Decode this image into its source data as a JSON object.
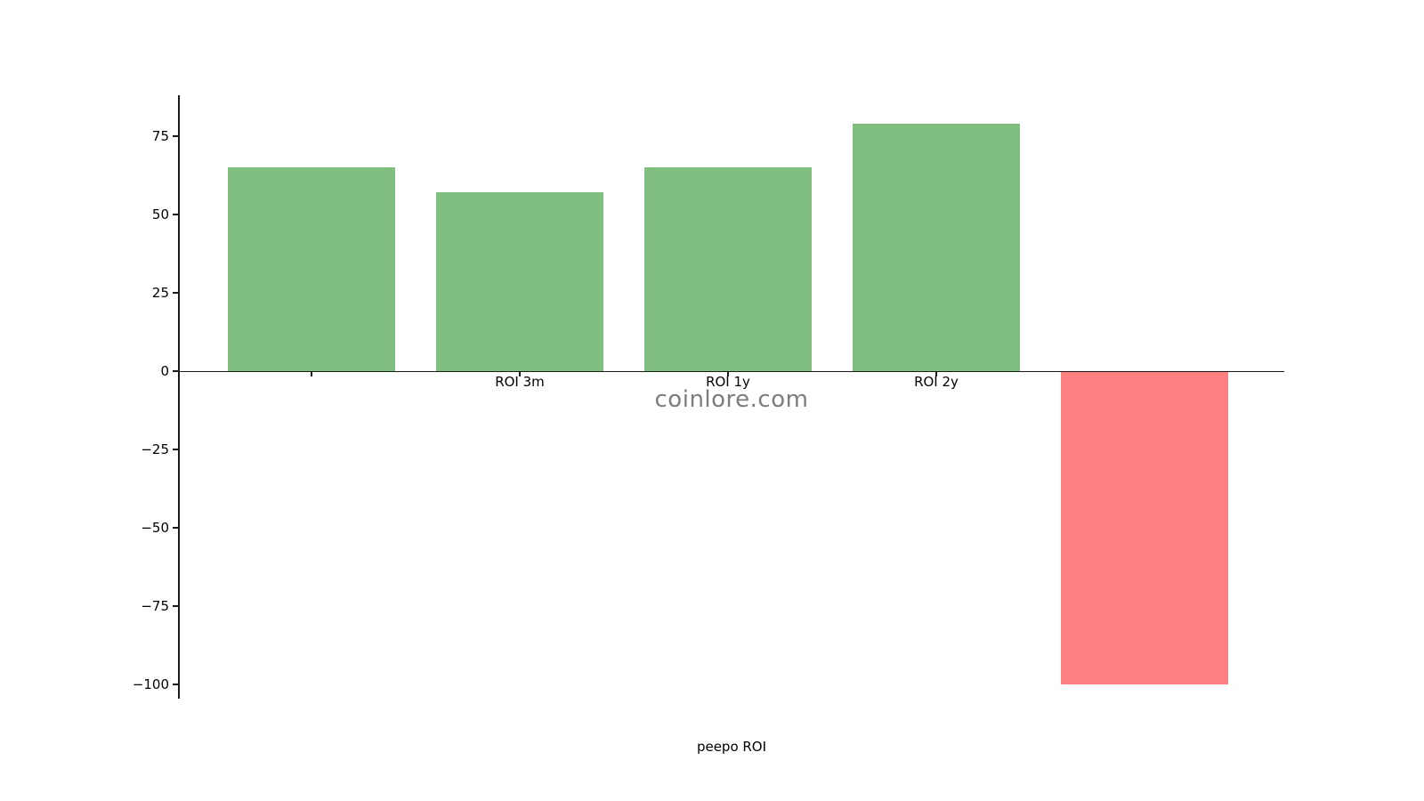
{
  "chart_data": {
    "type": "bar",
    "title": "peepo ROI",
    "watermark": "coinlore.com",
    "categories": [
      "",
      "ROI 3m",
      "ROI 1y",
      "ROI 2y",
      ""
    ],
    "values": [
      65,
      57,
      65,
      79,
      -100
    ],
    "series": [
      {
        "name": "peepo ROI %",
        "values": [
          65,
          57,
          65,
          79,
          -100
        ]
      }
    ],
    "xlabel": "peepo ROI",
    "ylabel": "",
    "y_ticks": [
      75,
      50,
      25,
      0,
      -25,
      -50,
      -75,
      -100
    ],
    "y_tick_labels": [
      "75",
      "50",
      "25",
      "0",
      "−25",
      "−50",
      "−75",
      "−100"
    ],
    "ylim": [
      -104,
      88
    ],
    "grid": false,
    "legend_position": "none",
    "positive_color": "#80bf80",
    "negative_color": "#ff8080",
    "axis_color": "#1a1a1a",
    "watermark_color": "#7d7d7d"
  }
}
